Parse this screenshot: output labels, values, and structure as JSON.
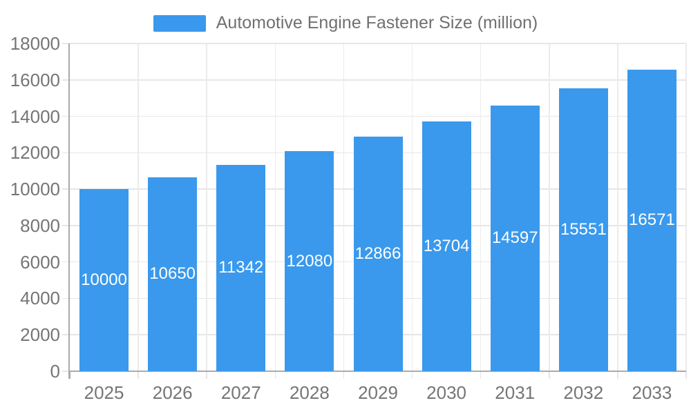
{
  "chart_data": {
    "type": "bar",
    "title": "Automotive Engine Fastener Size (million)",
    "legend_position": "top",
    "categories": [
      "2025",
      "2026",
      "2027",
      "2028",
      "2029",
      "2030",
      "2031",
      "2032",
      "2033"
    ],
    "values": [
      10000,
      10650,
      11342,
      12080,
      12866,
      13704,
      14597,
      15551,
      16571
    ],
    "yticks": [
      "0",
      "2000",
      "4000",
      "6000",
      "8000",
      "10000",
      "12000",
      "14000",
      "16000",
      "18000"
    ],
    "ylim": [
      0,
      18000
    ],
    "xlabel": "",
    "ylabel": "",
    "grid": true,
    "colors": {
      "bar": "#3a99ec",
      "bar_value_text": "#ffffff",
      "axis_text": "#757575",
      "legend_text": "#707070",
      "grid_line": "#e6e6e6",
      "vertical_grid_line": "#ebebeb",
      "axis_line": "#aaaaaa",
      "background": "#ffffff"
    }
  }
}
